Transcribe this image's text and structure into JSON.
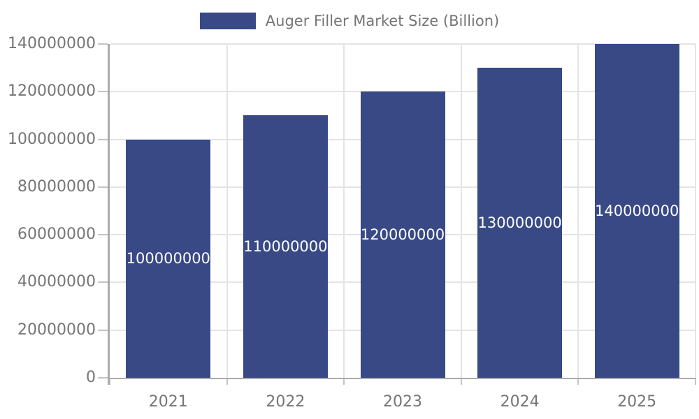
{
  "legend": {
    "label": "Auger Filler Market Size (Billion)"
  },
  "colors": {
    "bar": "#394986",
    "axis_line": "#ababab",
    "grid_line": "#e4e4e4",
    "tick": "#c4c4c4",
    "axis_text": "#757575",
    "bar_label_text": "#ffffff",
    "background": "#ffffff"
  },
  "chart_data": {
    "type": "bar",
    "title": "Auger Filler Market Size (Billion)",
    "categories": [
      "2021",
      "2022",
      "2023",
      "2024",
      "2025"
    ],
    "values": [
      100000000,
      110000000,
      120000000,
      130000000,
      140000000
    ],
    "bar_value_labels": [
      "100000000",
      "110000000",
      "120000000",
      "130000000",
      "140000000"
    ],
    "series": [
      {
        "name": "Auger Filler Market Size (Billion)",
        "values": [
          100000000,
          110000000,
          120000000,
          130000000,
          140000000
        ]
      }
    ],
    "xlabel": "",
    "ylabel": "",
    "ylim": [
      0,
      140000000
    ],
    "ytick_step": 20000000,
    "ytick_labels": [
      "0",
      "20000000",
      "40000000",
      "60000000",
      "80000000",
      "100000000",
      "120000000",
      "140000000"
    ],
    "grid": true,
    "legend_position": "top-center",
    "bar_label_position": "inside-middle"
  }
}
